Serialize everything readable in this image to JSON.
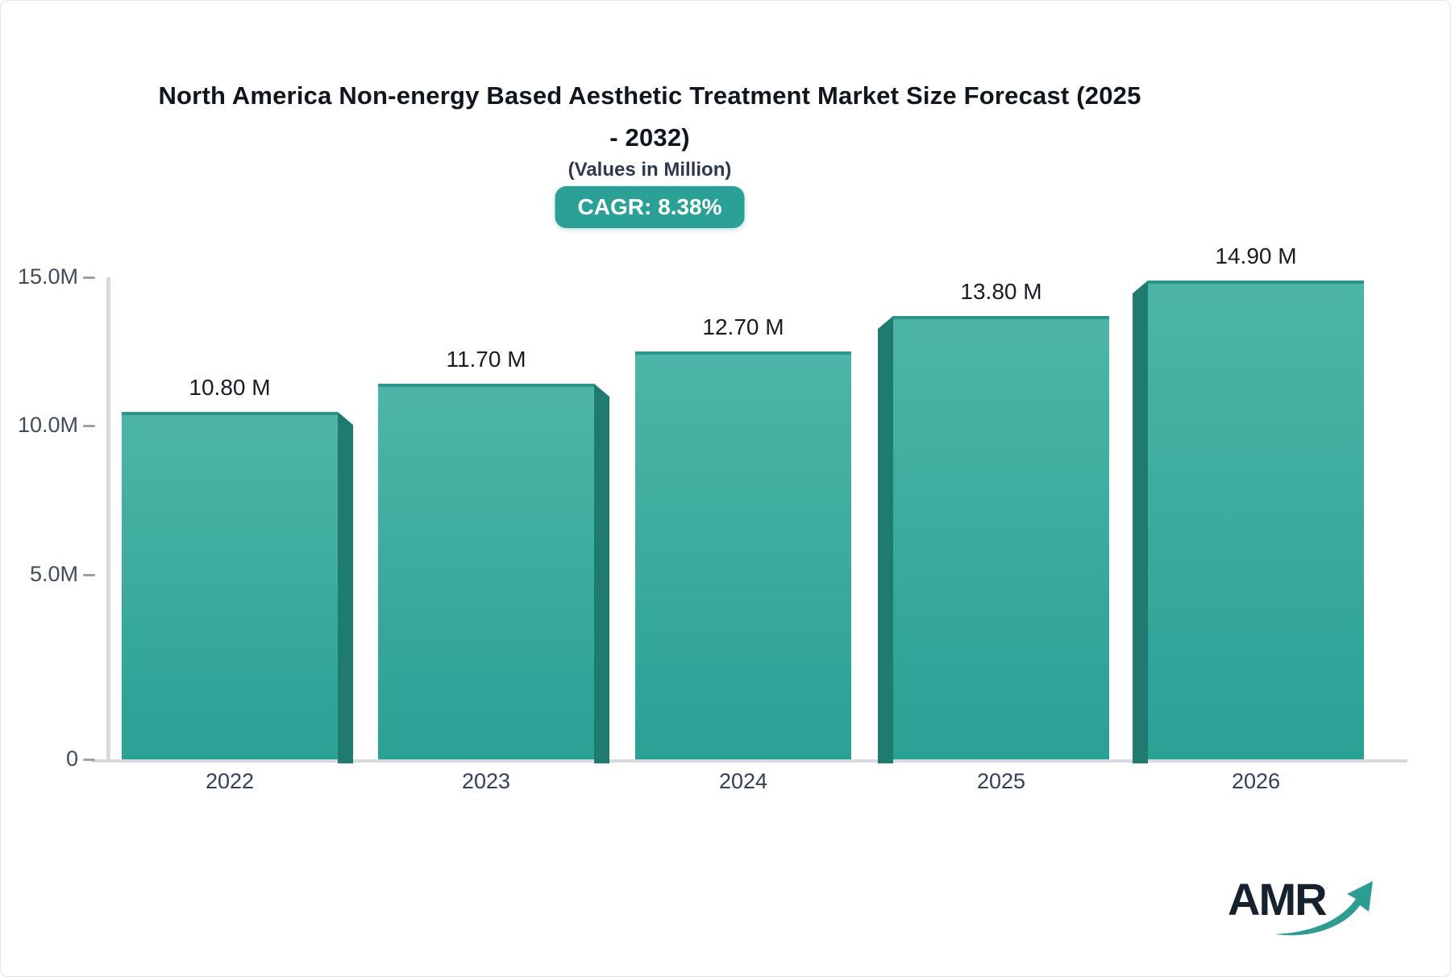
{
  "header": {
    "title": "North America Non-energy Based Aesthetic Treatment Market Size Forecast (2025 - 2032)",
    "title_line1": "North America Non-energy Based Aesthetic Treatment Market Size Forecast (2025",
    "title_line2": "- 2032)",
    "subtitle": "(Values in Million)",
    "cagr_badge": "CAGR: 8.38%"
  },
  "chart_data": {
    "type": "bar",
    "title": "North America Non-energy Based Aesthetic Treatment Market Size Forecast (2025 - 2032)",
    "subtitle": "(Values in Million)",
    "cagr_percent": 8.38,
    "categories": [
      "2022",
      "2023",
      "2024",
      "2025",
      "2026"
    ],
    "values": [
      10.8,
      11.7,
      12.7,
      13.8,
      14.9
    ],
    "bar_labels": [
      "10.80 M",
      "11.70 M",
      "12.70 M",
      "13.80 M",
      "14.90 M"
    ],
    "unit": "Million",
    "ylim": [
      0,
      15
    ],
    "yticks": [
      {
        "value": 15,
        "label": "15.0M"
      },
      {
        "value": 10,
        "label": "10.0M"
      },
      {
        "value": 5,
        "label": "5.0M"
      },
      {
        "value": 0,
        "label": "0"
      }
    ],
    "grid": false,
    "legend": false,
    "colors": {
      "bar_face_top": "#4db5a7",
      "bar_face_bottom": "#29a193",
      "bar_top_edge": "#2c948a",
      "bar_side": "#1f7b70",
      "badge_bg": "#2aa096",
      "badge_text": "#ffffff",
      "axis_line": "#d8d8e0",
      "tick_dash": "#9aa1a9",
      "ytick_text": "#414c5b",
      "xtick_text": "#333f52",
      "value_text": "#181d23"
    }
  },
  "logo": {
    "text": "AMR",
    "arrow_icon": "trending-up-arrow",
    "text_color": "#16222e",
    "arrow_color": "#2d9d92"
  }
}
